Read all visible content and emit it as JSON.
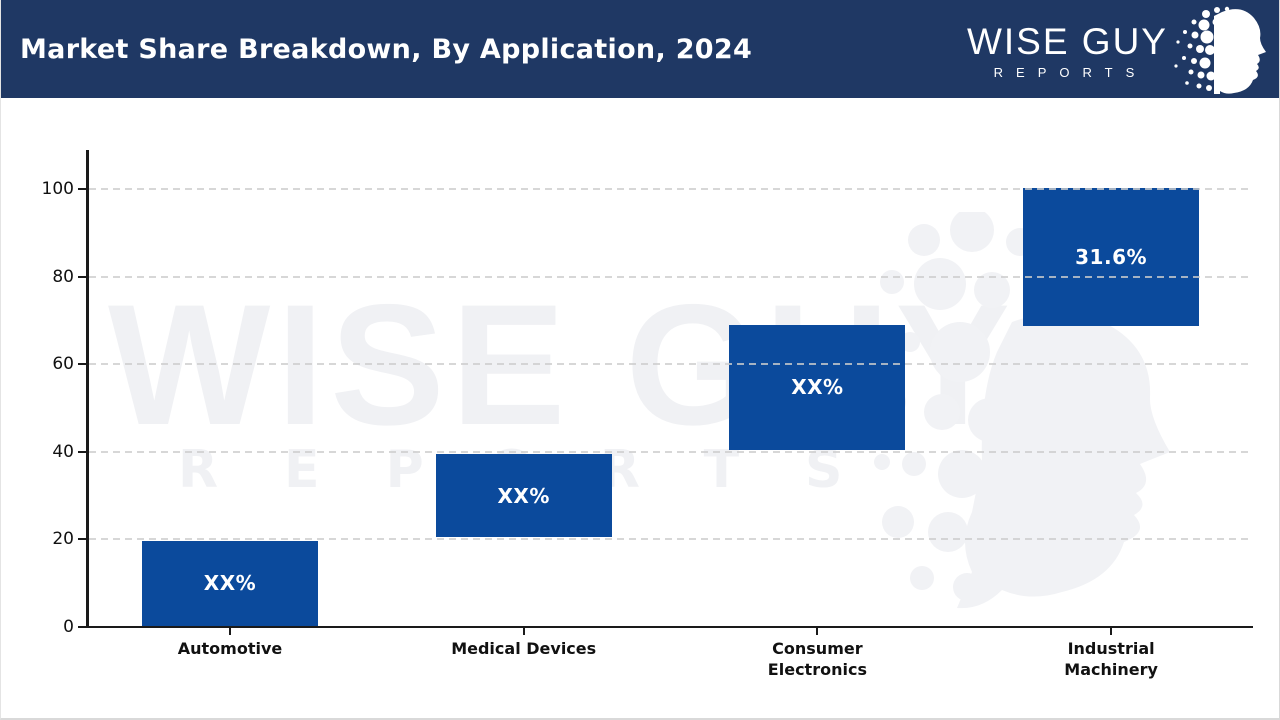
{
  "header": {
    "title": "Market Share Breakdown, By Application, 2024",
    "bg_color": "#1f3864",
    "logo": {
      "line1": "WISE GUY",
      "line2": "REPORTS"
    }
  },
  "watermark": {
    "line1": "WISE GUY",
    "line2": "REPORTS"
  },
  "chart_data": {
    "type": "bar",
    "subtype": "waterfall-floating-bars",
    "title": "Market Share Breakdown, By Application, 2024",
    "categories": [
      "Automotive",
      "Medical Devices",
      "Consumer Electronics",
      "Industrial Machinery"
    ],
    "categories_display": [
      "Automotive",
      "Medical Devices",
      "Consumer\nElectronics",
      "Industrial\nMachinery"
    ],
    "segments": [
      {
        "category": "Automotive",
        "start": 0,
        "end": 19.4,
        "label": "XX%"
      },
      {
        "category": "Medical Devices",
        "start": 20.3,
        "end": 39.1,
        "label": "XX%"
      },
      {
        "category": "Consumer Electronics",
        "start": 40.2,
        "end": 68.7,
        "label": "XX%"
      },
      {
        "category": "Industrial Machinery",
        "start": 68.4,
        "end": 100,
        "label": "31.6%"
      }
    ],
    "ylim": [
      0,
      100
    ],
    "yticks": [
      "0",
      "20",
      "40",
      "60",
      "80",
      "100"
    ],
    "xlabel": "",
    "ylabel": "",
    "grid": "horizontal-dashed",
    "legend": "none",
    "bar_color": "#0b4a9c",
    "bar_label_color": "#ffffff",
    "gridline_color": "#d9d9d9",
    "axis_color": "#1a1a1a"
  }
}
